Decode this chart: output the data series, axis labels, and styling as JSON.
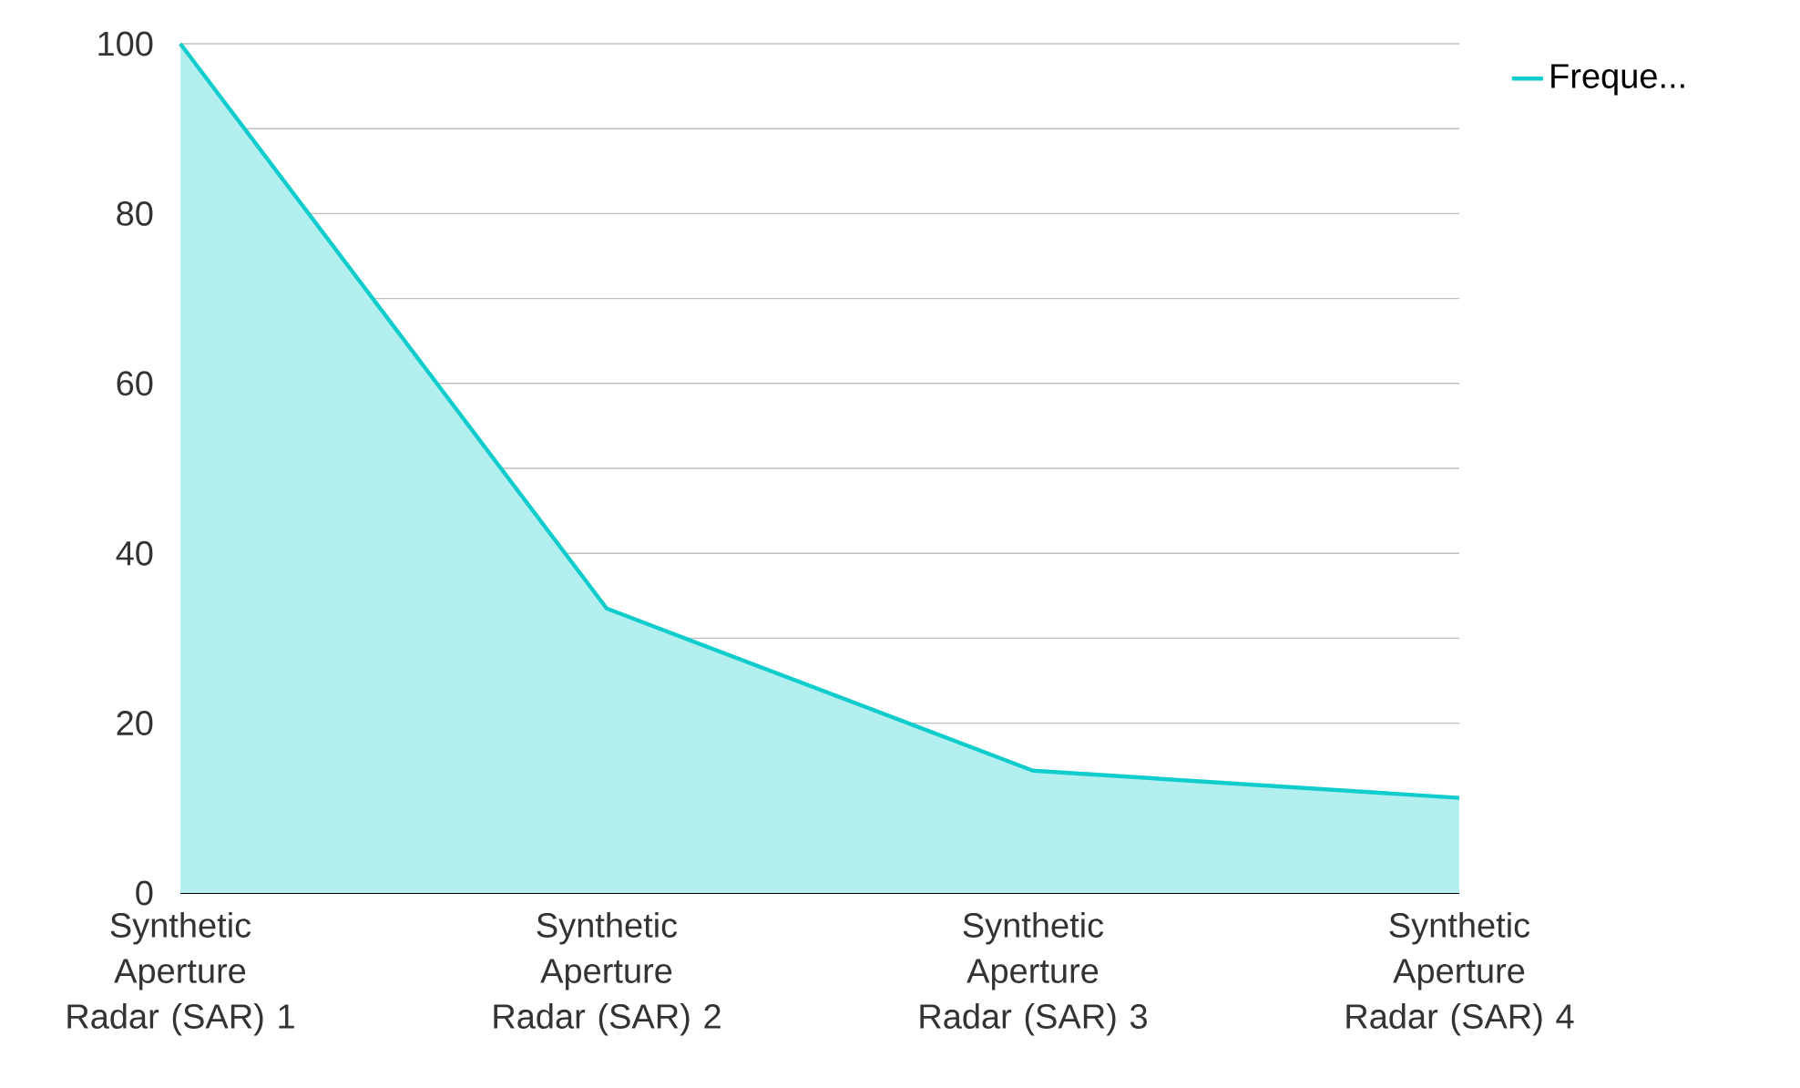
{
  "chart_data": {
    "type": "area",
    "categories": [
      "Synthetic Aperture Radar (SAR) 1",
      "Synthetic Aperture Radar (SAR) 2",
      "Synthetic Aperture Radar (SAR) 3",
      "Synthetic Aperture Radar (SAR) 4"
    ],
    "series": [
      {
        "name": "Freque...",
        "color": "#10cccc",
        "values": [
          100,
          33.5,
          14.4,
          11.2
        ]
      }
    ],
    "ylim": [
      0,
      100
    ],
    "yticks": [
      0,
      {
        "value": 10,
        "label": null
      },
      20,
      {
        "value": 30,
        "label": null
      },
      40,
      {
        "value": 50,
        "label": null
      },
      60,
      {
        "value": 70,
        "label": null
      },
      80,
      {
        "value": 90,
        "label": null
      },
      100
    ],
    "grid": "y",
    "legend": "top right"
  }
}
